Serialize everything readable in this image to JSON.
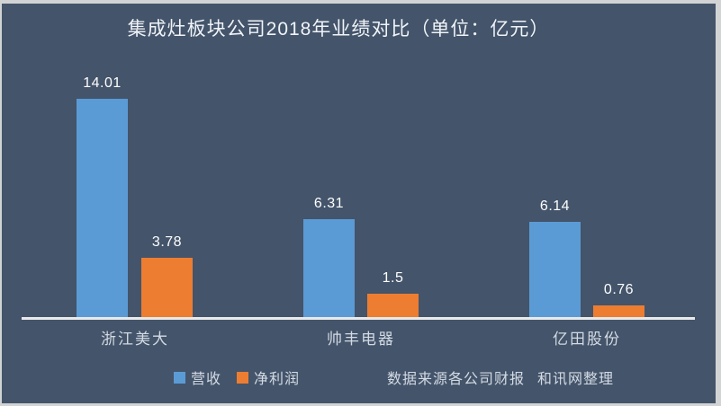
{
  "chart_data": {
    "type": "bar",
    "title": "集成灶板块公司2018年业绩对比（单位：亿元）",
    "categories": [
      "浙江美大",
      "帅丰电器",
      "亿田股份"
    ],
    "series": [
      {
        "name": "营收",
        "color": "#5B9BD5",
        "values": [
          14.01,
          6.31,
          6.14
        ]
      },
      {
        "name": "净利润",
        "color": "#ED7D31",
        "values": [
          3.78,
          1.5,
          0.76
        ]
      }
    ],
    "value_labels": [
      [
        "14.01",
        "3.78"
      ],
      [
        "6.31",
        "1.5"
      ],
      [
        "6.14",
        "0.76"
      ]
    ],
    "ylim": [
      0,
      14.5
    ],
    "grid": false,
    "legend_position": "bottom",
    "unit": "亿元"
  },
  "footer": {
    "source": "数据来源各公司财报",
    "compiler": "和讯网整理"
  },
  "colors": {
    "background": "#44546A",
    "frame": "#D2D3D5",
    "axis_line": "#E9EAEB",
    "revenue_bar": "#5B9BD5",
    "profit_bar": "#ED7D31",
    "value_label_text": "#FDFEFF",
    "category_text": "#D3DAE4",
    "title_text": "#F0F4F9"
  }
}
